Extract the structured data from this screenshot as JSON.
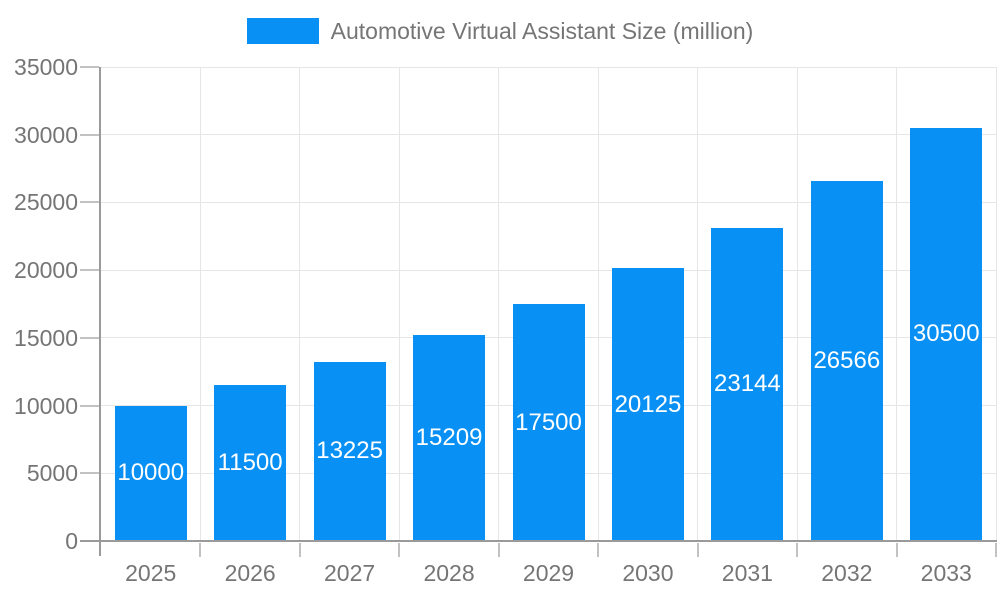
{
  "legend": {
    "label": "Automotive Virtual Assistant Size (million)"
  },
  "chart_data": {
    "type": "bar",
    "title": "Automotive Virtual Assistant Size (million)",
    "legend_position": "top",
    "categories": [
      "2025",
      "2026",
      "2027",
      "2028",
      "2029",
      "2030",
      "2031",
      "2032",
      "2033"
    ],
    "series": [
      {
        "name": "Automotive Virtual Assistant Size (million)",
        "values": [
          10000,
          11500,
          13225,
          15209,
          17500,
          20125,
          23144,
          26566,
          30500
        ]
      }
    ],
    "value_labels_shown": true,
    "value_label_position": "inside-center",
    "xlabel": "",
    "ylabel": "",
    "ylim": [
      0,
      35000
    ],
    "y_ticks": [
      0,
      5000,
      10000,
      15000,
      20000,
      25000,
      30000,
      35000
    ],
    "grid": true,
    "colors": {
      "bar": "#0990f4",
      "value_label_text": "#ffffff",
      "axis_text": "#757575",
      "grid_line": "#e6e6e6",
      "tick_mark": "#c2c2c2",
      "axis_line": "#9a9a9a",
      "background": "#ffffff"
    }
  }
}
